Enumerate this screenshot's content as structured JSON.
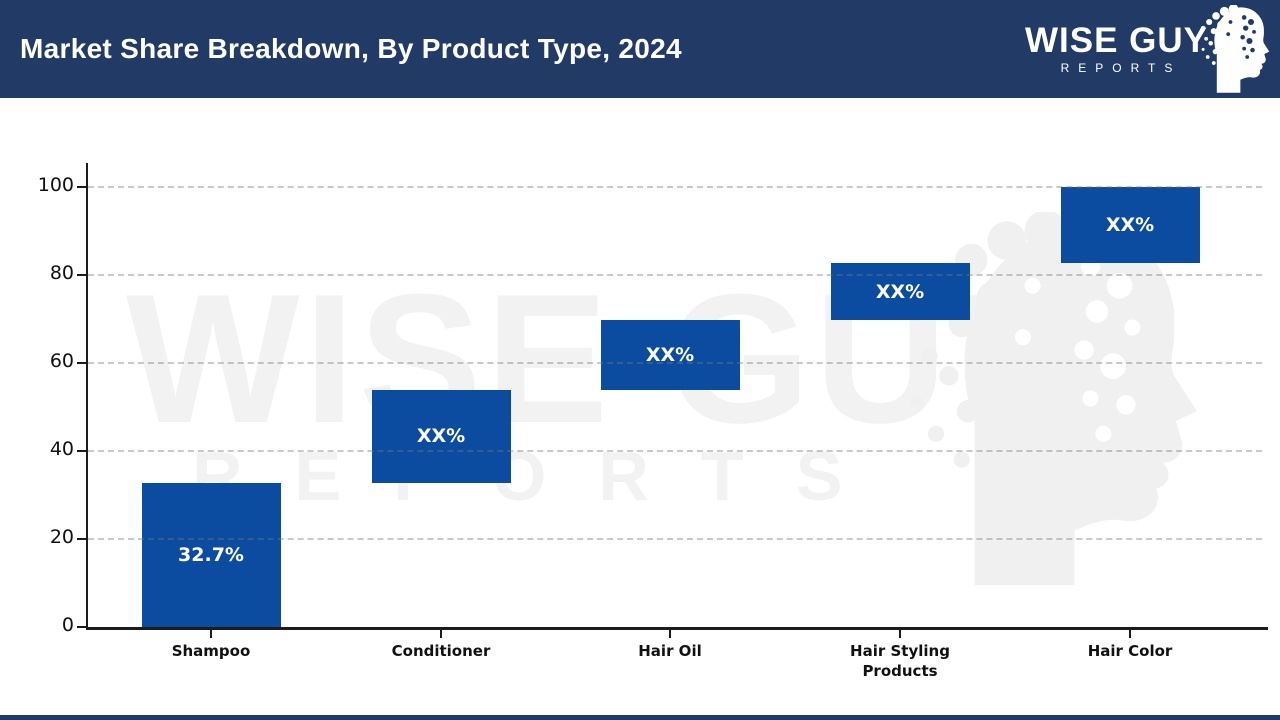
{
  "header": {
    "title": "Market Share Breakdown, By Product Type, 2024",
    "logo": {
      "line1": "WISE GUY",
      "line2": "REPORTS"
    }
  },
  "watermark": {
    "line1": "WISE GUY",
    "line2": "REPORTS"
  },
  "icons": {
    "logo_face": "wiseguy-face-icon",
    "watermark_face": "wiseguy-face-watermark-icon"
  },
  "colors": {
    "header_bg": "#223A66",
    "bar": "#0B4BA0",
    "bar_label": "#ffffff",
    "axis": "#1c1c1c",
    "grid": "rgba(120,120,120,0.40)",
    "watermark": "#f2f2f3"
  },
  "chart_data": {
    "type": "bar",
    "subtype": "floating_waterfall",
    "title": "Market Share Breakdown, By Product Type, 2024",
    "xlabel": "",
    "ylabel": "",
    "categories": [
      "Shampoo",
      "Conditioner",
      "Hair Oil",
      "Hair Styling Products",
      "Hair Color"
    ],
    "segments": [
      [
        0,
        32.7
      ],
      [
        32.7,
        53.9
      ],
      [
        53.9,
        69.8
      ],
      [
        69.8,
        82.7
      ],
      [
        82.7,
        100
      ]
    ],
    "increments": [
      32.7,
      21.2,
      15.9,
      12.9,
      17.3
    ],
    "bar_labels": [
      "32.7%",
      "XX%",
      "XX%",
      "XX%",
      "XX%"
    ],
    "yticks": [
      0,
      20,
      40,
      60,
      80,
      100
    ],
    "ylim": [
      0,
      100
    ],
    "grid": "dashed-horizontal",
    "legend": "none"
  }
}
